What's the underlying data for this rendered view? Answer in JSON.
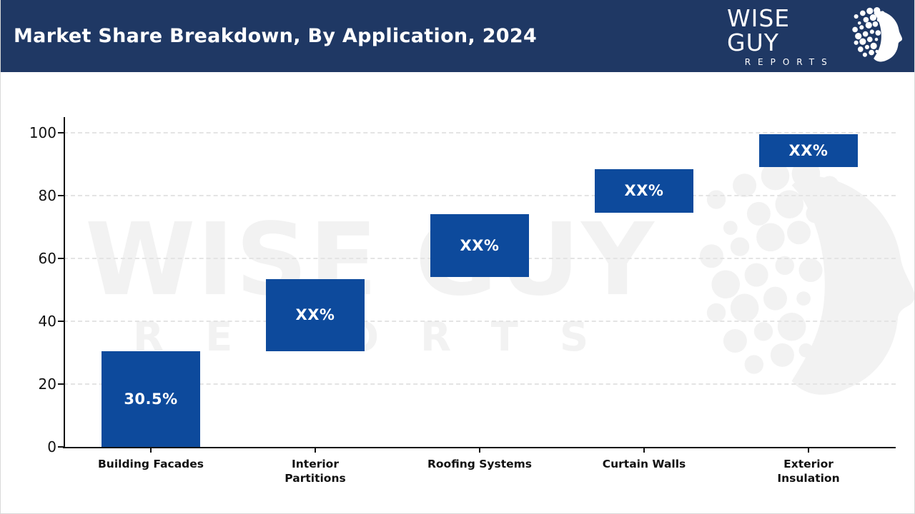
{
  "header": {
    "title": "Market Share Breakdown, By Application, 2024",
    "logo": {
      "wordmark": "WISE GUY",
      "sub": "REPORTS"
    }
  },
  "watermark": {
    "line1": "WISE GUY",
    "line2": "REPORTS"
  },
  "colors": {
    "header_bg": "#1f3864",
    "bar": "#0d4a9c",
    "bar_label": "#ffffff",
    "axis": "#111111",
    "grid": "#e4e4e4",
    "tick_label": "#111111",
    "watermark": "#f2f2f2"
  },
  "chart_data": {
    "type": "bar",
    "subtype": "floating-segment-breakdown",
    "title": "Market Share Breakdown, By Application, 2024",
    "categories": [
      "Building Facades",
      "Interior Partitions",
      "Roofing Systems",
      "Curtain Walls",
      "Exterior Insulation"
    ],
    "segments": [
      {
        "category": "Building Facades",
        "label_lines": [
          "Building Facades"
        ],
        "start": 0,
        "end": 30.5,
        "value_label": "30.5%"
      },
      {
        "category": "Interior Partitions",
        "label_lines": [
          "Interior",
          "Partitions"
        ],
        "start": 30.5,
        "end": 53.5,
        "value_label": "XX%"
      },
      {
        "category": "Roofing Systems",
        "label_lines": [
          "Roofing Systems"
        ],
        "start": 54,
        "end": 74,
        "value_label": "XX%"
      },
      {
        "category": "Curtain Walls",
        "label_lines": [
          "Curtain Walls"
        ],
        "start": 74.5,
        "end": 88.5,
        "value_label": "XX%"
      },
      {
        "category": "Exterior Insulation",
        "label_lines": [
          "Exterior",
          "Insulation"
        ],
        "start": 89,
        "end": 99.5,
        "value_label": "XX%"
      }
    ],
    "ylim": [
      0,
      100
    ],
    "yticks": [
      0,
      20,
      40,
      60,
      80,
      100
    ],
    "grid": "dashed-horizontal",
    "legend": "none"
  }
}
